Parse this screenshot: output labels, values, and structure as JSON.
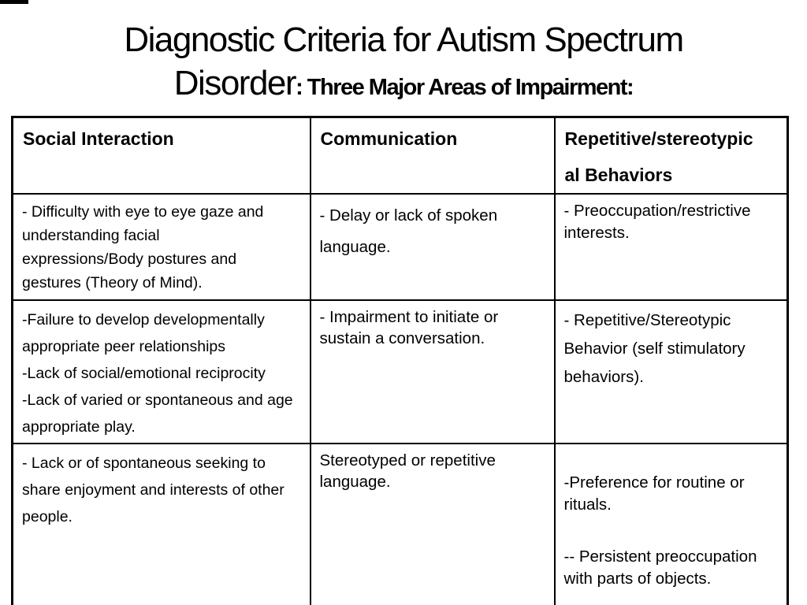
{
  "slide_title": {
    "line1": "Diagnostic Criteria for Autism Spectrum",
    "line2_main": "Disorder",
    "line2_sub": ": Three Major Areas of Impairment:"
  },
  "criteria_table": {
    "headers": [
      "Social Interaction",
      "Communication",
      "Repetitive/stereotypic\nal Behaviors"
    ],
    "rows": [
      {
        "social": "- Difficulty with eye to eye gaze and\nunderstanding facial\nexpressions/Body postures and\ngestures (Theory of Mind).",
        "communication": "- Delay or lack of spoken\nlanguage.",
        "repetitive": "- Preoccupation/restrictive\ninterests."
      },
      {
        "social": "-Failure to develop developmentally\nappropriate peer relationships\n-Lack of social/emotional reciprocity\n-Lack of varied or spontaneous and age\nappropriate play.",
        "communication": "- Impairment to initiate or\nsustain a conversation.",
        "repetitive": "- Repetitive/Stereotypic\nBehavior (self stimulatory\nbehaviors)."
      },
      {
        "social": "- Lack or of spontaneous seeking to\nshare enjoyment and  interests of other\npeople.",
        "communication": "Stereotyped or repetitive\nlanguage.",
        "repetitive_para1": "-Preference for routine or\nrituals.",
        "repetitive_para2": "-- Persistent preoccupation\nwith parts of objects."
      }
    ]
  }
}
